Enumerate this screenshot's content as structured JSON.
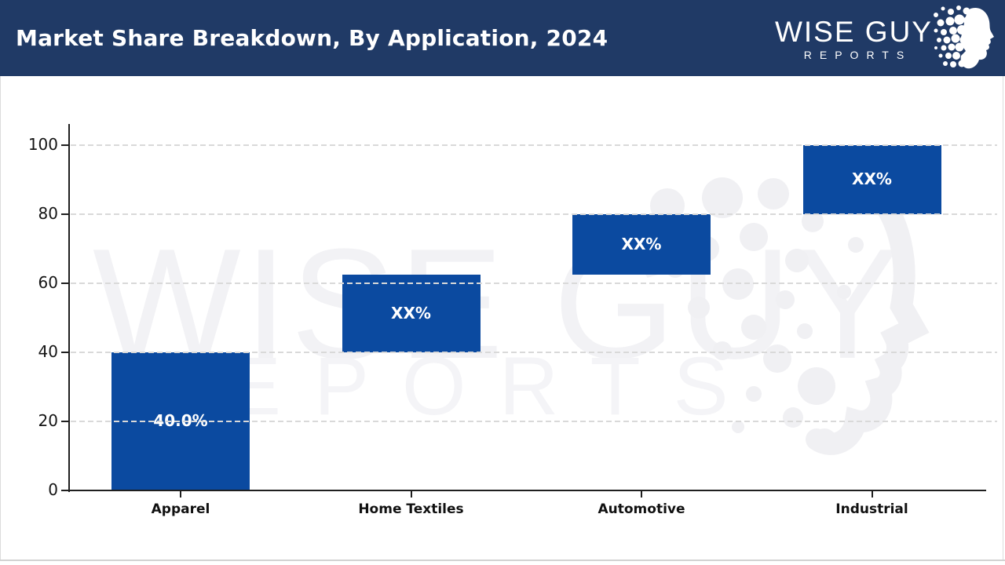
{
  "header": {
    "title": "Market Share Breakdown, By Application, 2024",
    "logo": {
      "line1": "WISE GUY",
      "line2": "REPORTS"
    }
  },
  "watermark": {
    "line1": "WISE GUY",
    "line2": "REPORTS"
  },
  "colors": {
    "header_bg": "#203A66",
    "bar": "#0B4AA0",
    "grid": "#D9D9D9",
    "axis": "#1F1F1F",
    "watermark": "#F2F2F5"
  },
  "chart_data": {
    "type": "bar",
    "subtype": "waterfall",
    "title": "Market Share Breakdown, By Application, 2024",
    "categories": [
      "Apparel",
      "Home Textiles",
      "Automotive",
      "Industrial"
    ],
    "segments": [
      {
        "category": "Apparel",
        "start": 0,
        "end": 40,
        "label": "40.0%"
      },
      {
        "category": "Home Textiles",
        "start": 40,
        "end": 62.5,
        "label": "XX%"
      },
      {
        "category": "Automotive",
        "start": 62.5,
        "end": 80,
        "label": "XX%"
      },
      {
        "category": "Industrial",
        "start": 80,
        "end": 100,
        "label": "XX%"
      }
    ],
    "xlabel": "",
    "ylabel": "",
    "yticks": [
      0,
      20,
      40,
      60,
      80,
      100
    ],
    "ylim": [
      0,
      106
    ],
    "grid": "horizontal-dashed",
    "legend": "none",
    "bar_color": "#0B4AA0",
    "bar_label_color": "#FFFFFF"
  }
}
